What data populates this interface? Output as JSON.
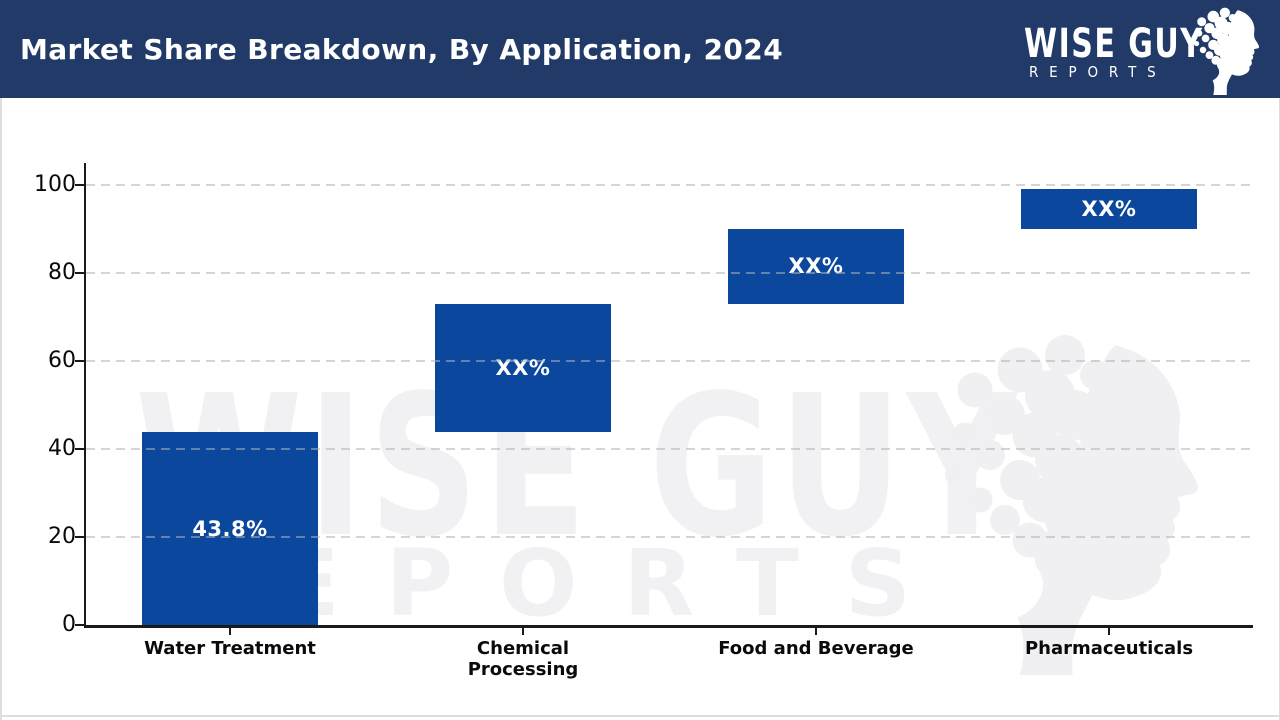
{
  "header": {
    "title": "Market Share Breakdown, By Application, 2024",
    "logo": {
      "brand": "WISE GUY",
      "subbrand": "REPORTS"
    }
  },
  "watermark": {
    "line1": "WISE GUY",
    "line2": "REPORTS"
  },
  "chart_data": {
    "type": "bar",
    "variant": "waterfall",
    "title": "Market Share Breakdown, By Application, 2024",
    "categories": [
      "Water Treatment",
      "Chemical\nProcessing",
      "Food and Beverage",
      "Pharmaceuticals"
    ],
    "segments": [
      {
        "category": "Water Treatment",
        "start": 0,
        "end": 43.8,
        "label": "43.8%"
      },
      {
        "category": "Chemical Processing",
        "start": 43.8,
        "end": 73,
        "label": "XX%"
      },
      {
        "category": "Food and Beverage",
        "start": 73,
        "end": 90,
        "label": "XX%"
      },
      {
        "category": "Pharmaceuticals",
        "start": 90,
        "end": 99.2,
        "label": "XX%"
      }
    ],
    "xlabel": "",
    "ylabel": "",
    "ylim": [
      0,
      105
    ],
    "yticks": [
      0,
      20,
      40,
      60,
      80,
      100
    ],
    "grid": "dashed-horizontal",
    "legend": null,
    "colors": {
      "bar": "#0b479c",
      "bar_label": "#ffffff",
      "grid": "#d8d8d8",
      "axis": "#1a1a1a",
      "header_bg": "#213a67",
      "watermark": "#f1f1f4"
    }
  }
}
